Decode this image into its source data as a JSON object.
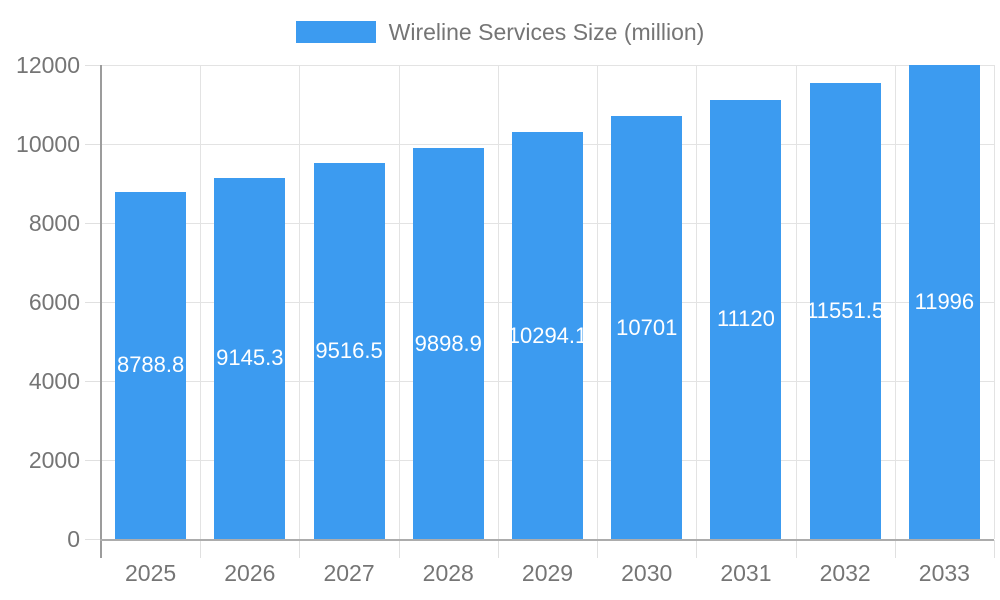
{
  "legend": {
    "label": "Wireline Services Size (million)",
    "swatch_color": "#3C9BF0"
  },
  "chart_data": {
    "type": "bar",
    "title": "Wireline Services Size (million)",
    "categories": [
      "2025",
      "2026",
      "2027",
      "2028",
      "2029",
      "2030",
      "2031",
      "2032",
      "2033"
    ],
    "series": [
      {
        "name": "Wireline Services Size (million)",
        "values": [
          8788.8,
          9145.3,
          9516.5,
          9898.9,
          10294.1,
          10701,
          11120,
          11551.5,
          11996
        ]
      }
    ],
    "bar_labels": [
      "8788.8",
      "9145.3",
      "9516.5",
      "9898.9",
      "10294.1",
      "10701",
      "11120",
      "11551.5",
      "11996"
    ],
    "xlabel": "",
    "ylabel": "",
    "ylim": [
      0,
      12000
    ],
    "yticks": [
      0,
      2000,
      4000,
      6000,
      8000,
      10000,
      12000
    ],
    "y_tick_labels": [
      "0",
      "2000",
      "4000",
      "6000",
      "8000",
      "10000",
      "12000"
    ],
    "grid": true,
    "legend_position": "top-center"
  },
  "style": {
    "bar_color": "#3C9BF0",
    "bar_label_color": "#FFFFFF",
    "grid_color": "#E3E3E3",
    "tick_color": "#E0E0E0",
    "axis_y_color": "#9C9C9C",
    "axis_x_color": "#ACACAC",
    "text_color": "#757575"
  }
}
